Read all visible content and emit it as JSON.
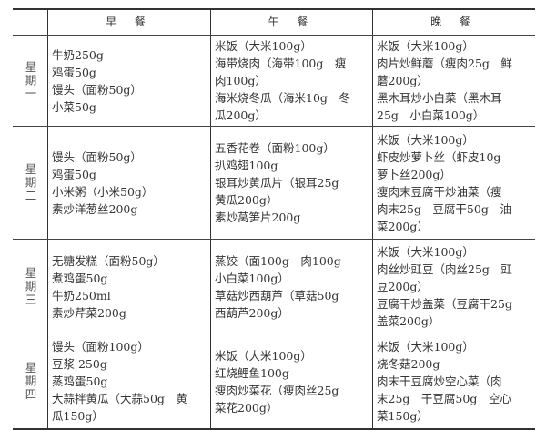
{
  "header": {
    "breakfast": "早 餐",
    "lunch": "午 餐",
    "dinner": "晚 餐"
  },
  "rows": [
    {
      "day": "星期一",
      "breakfast": [
        "牛奶250g",
        "鸡蛋50g",
        "馒头（面粉50g）",
        "小菜50g"
      ],
      "lunch": [
        "米饭（大米100g）",
        "海带烧肉（海带100g　瘦",
        "肉100g）",
        "海米烧冬瓜（海米10g　冬",
        "瓜200g）"
      ],
      "dinner": [
        "米饭（大米100g）",
        "肉片炒鲜蘑（瘦肉25g　鲜",
        "蘑200g）",
        "黑木耳炒小白菜（黑木耳",
        "25g　小白菜100g）"
      ]
    },
    {
      "day": "星期二",
      "breakfast": [
        "馒头（面粉50g）",
        "鸡蛋50g",
        "小米粥（小米50g）",
        "素炒洋葱丝200g"
      ],
      "lunch": [
        "五香花卷（面粉100g）",
        "扒鸡翅100g",
        "银耳炒黄瓜片（银耳25g",
        "黄瓜200g）",
        "素炒莴笋片200g"
      ],
      "dinner": [
        "米饭（大米100g）",
        "虾皮炒萝卜丝（虾皮10g",
        "萝卜丝200g）",
        "瘦肉末豆腐干炒油菜（瘦",
        "肉末25g　豆腐干50g　油",
        "菜200g）"
      ]
    },
    {
      "day": "星期三",
      "breakfast": [
        "无糖发糕（面粉50g）",
        "煮鸡蛋50g",
        "牛奶250ml",
        "素炒芹菜200g"
      ],
      "lunch": [
        "蒸饺（面100g　肉100g",
        "小白菜100g）",
        "草菇炒西葫芦（草菇50g",
        "西葫芦200g）"
      ],
      "dinner": [
        "米饭（大米100g）",
        "肉丝炒豇豆（肉丝25g　豇",
        "豆200g）",
        "豆腐干炒盖菜（豆腐干25g",
        "盖菜200g）"
      ]
    },
    {
      "day": "星期四",
      "breakfast": [
        "馒头（面粉100g）",
        "豆浆 250g",
        "蒸鸡蛋50g",
        "大蒜拌黄瓜（大蒜50g　黄",
        "瓜150g）"
      ],
      "lunch": [
        "米饭（大米100g）",
        "红烧鲤鱼100g",
        "瘦肉炒菜花（瘦肉丝25g",
        "菜花200g）"
      ],
      "dinner": [
        "米饭（大米100g）",
        "烧冬菇200g",
        "肉末干豆腐炒空心菜（肉",
        "末25g　干豆腐50g　空心",
        "菜150g）"
      ]
    }
  ]
}
